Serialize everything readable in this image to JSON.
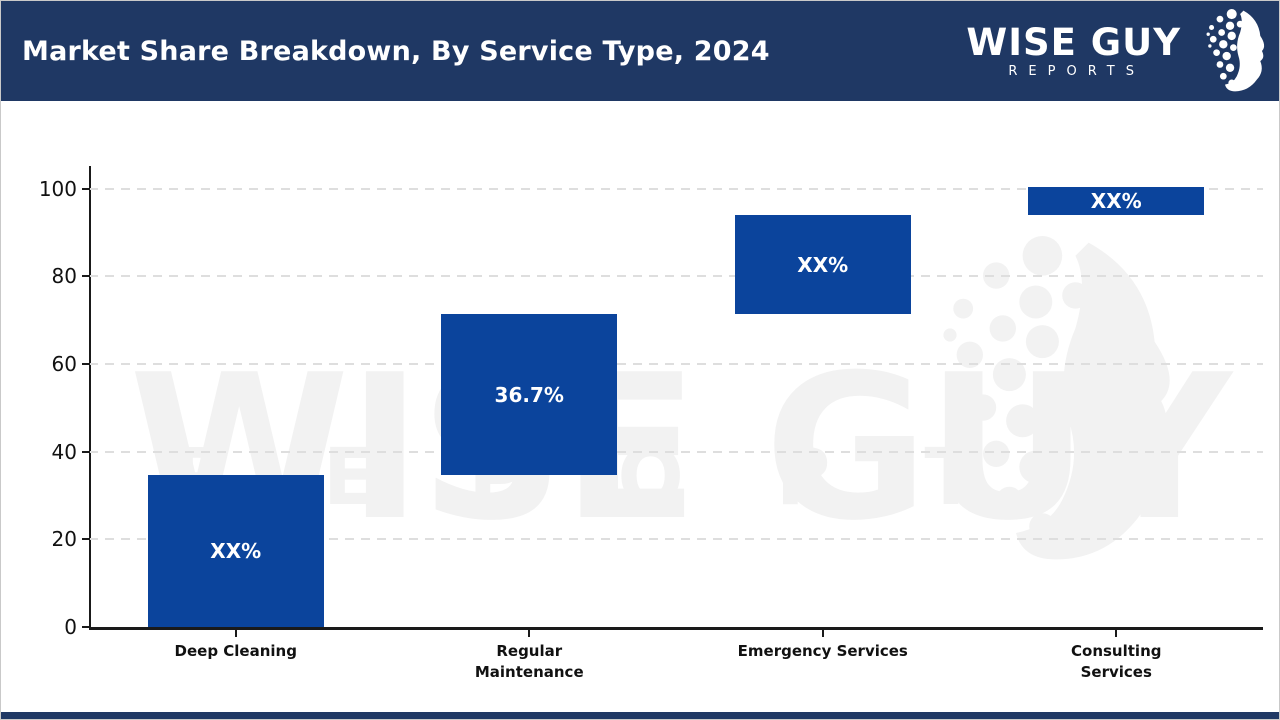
{
  "header": {
    "title": "Market Share Breakdown, By Service Type, 2024",
    "logo": {
      "line1": "WISE GUY",
      "line2": "REPORTS"
    }
  },
  "watermark": {
    "line1": "WISE GUY",
    "line2": "REPORTS"
  },
  "colors": {
    "header_bg": "#1f3864",
    "footer_bg": "#1f3864",
    "bar": "#0b449c",
    "bar_label": "#ffffff",
    "grid": "#dedede",
    "axis": "#1a1a1a",
    "watermark": "#f2f2f2"
  },
  "chart_data": {
    "type": "bar",
    "subtype": "waterfall",
    "title": "Market Share Breakdown, By Service Type, 2024",
    "categories": [
      "Deep Cleaning",
      "Regular Maintenance",
      "Emergency Services",
      "Consulting Services"
    ],
    "categories_lines": [
      [
        "Deep Cleaning"
      ],
      [
        "Regular",
        "Maintenance"
      ],
      [
        "Emergency Services"
      ],
      [
        "Consulting",
        "Services"
      ]
    ],
    "segments": [
      {
        "category": "Deep Cleaning",
        "start": 0,
        "end": 34.6,
        "label": "XX%"
      },
      {
        "category": "Regular Maintenance",
        "start": 34.6,
        "end": 71.3,
        "label": "36.7%"
      },
      {
        "category": "Emergency Services",
        "start": 71.3,
        "end": 93.9,
        "label": "XX%"
      },
      {
        "category": "Consulting Services",
        "start": 93.9,
        "end": 100.3,
        "label": "XX%"
      }
    ],
    "y_ticks": [
      0,
      20,
      40,
      60,
      80,
      100
    ],
    "ylim": [
      0,
      105
    ],
    "xlabel": "",
    "ylabel": "",
    "grid": "dashed-horizontal",
    "legend": "none"
  }
}
